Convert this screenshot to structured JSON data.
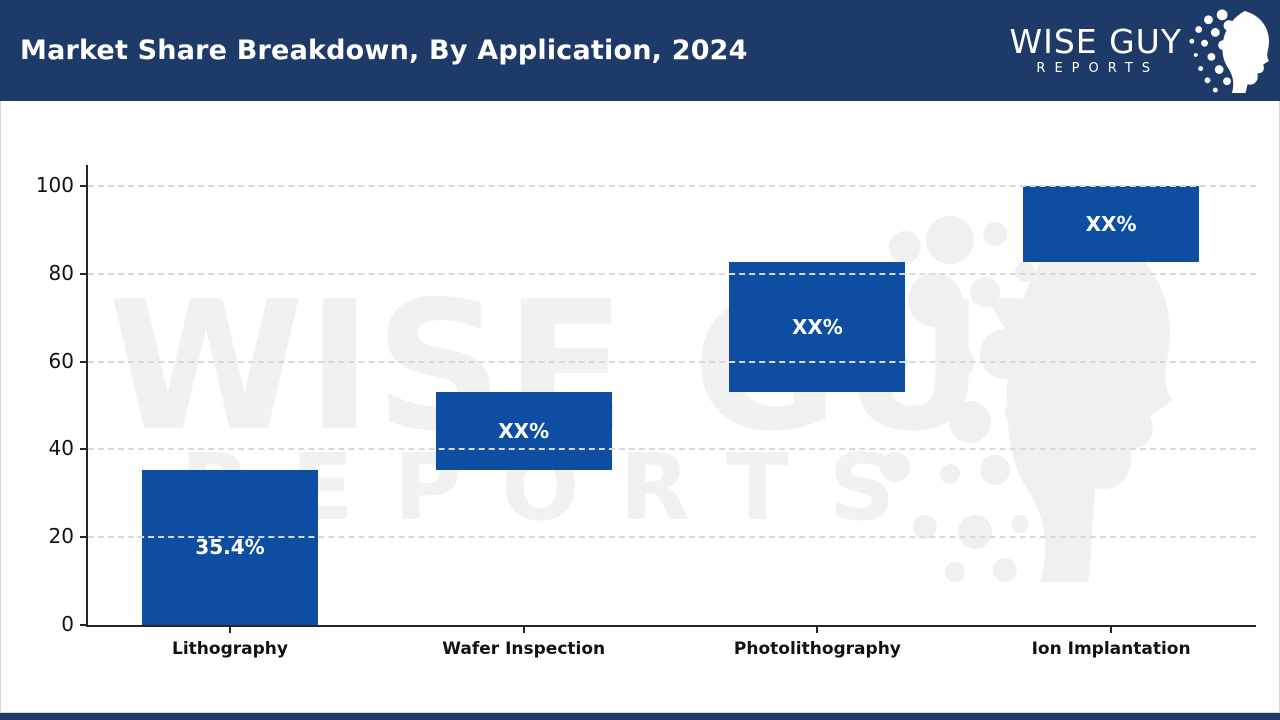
{
  "header": {
    "title": "Market Share Breakdown, By Application, 2024",
    "logo": {
      "primary": "WISE GUY",
      "secondary": "REPORTS"
    }
  },
  "watermark": {
    "primary": "WISE GUY",
    "secondary": "REPORTS"
  },
  "chart_data": {
    "type": "bar",
    "subtype": "waterfall-percent-breakdown",
    "title": "Market Share Breakdown, By Application, 2024",
    "categories": [
      "Lithography",
      "Wafer Inspection",
      "Photolithography",
      "Ion Implantation"
    ],
    "segments": [
      {
        "category": "Lithography",
        "start": 0,
        "end": 35.4,
        "label": "35.4%"
      },
      {
        "category": "Wafer Inspection",
        "start": 35.4,
        "end": 53.0,
        "label": "XX%"
      },
      {
        "category": "Photolithography",
        "start": 53.0,
        "end": 82.7,
        "label": "XX%"
      },
      {
        "category": "Ion Implantation",
        "start": 82.7,
        "end": 100,
        "label": "XX%"
      }
    ],
    "ylim": [
      0,
      100
    ],
    "yticks": [
      0,
      20,
      40,
      60,
      80,
      100
    ],
    "xlabel": "",
    "ylabel": "",
    "grid": "horizontal-dashed",
    "legend": "none",
    "bar_color": "#0d4da2",
    "bar_label_color": "#ffffff"
  },
  "colors": {
    "header_bg": "#1e3a68",
    "footer_bg": "#1e3a68",
    "bar": "#0d4da2",
    "watermark": "#f1f1f1",
    "gridline": "#d9d9d9",
    "axis": "#262626",
    "card_border": "#d9d9d9",
    "title_text": "#ffffff"
  }
}
